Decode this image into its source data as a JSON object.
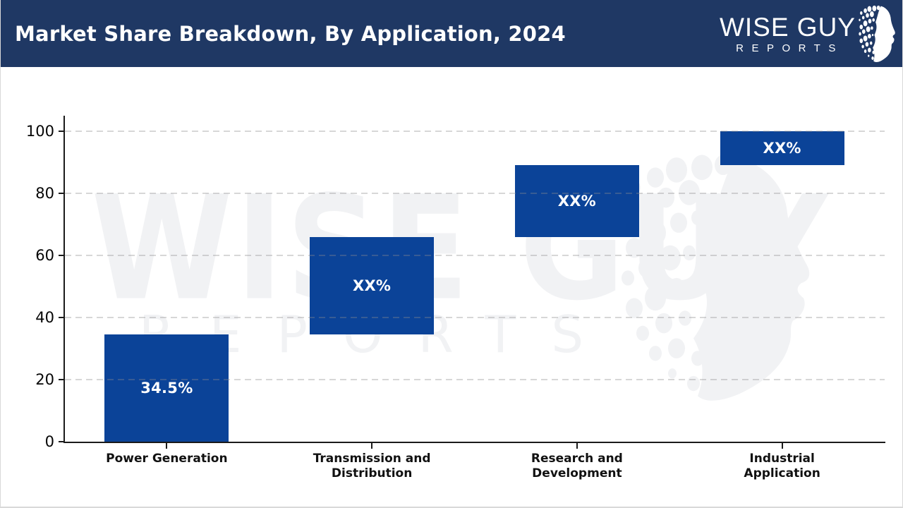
{
  "header": {
    "title": "Market Share Breakdown, By Application, 2024",
    "logo": {
      "line1": "WISE GUY",
      "line2": "REPORTS"
    }
  },
  "watermark": {
    "line1": "WISE GUY",
    "line2": "REPORTS"
  },
  "colors": {
    "header_bg": "#1f3864",
    "bar": "#0b4398",
    "axis": "#1a1a1a",
    "gridline_base": "#d9d9d9",
    "watermark": "#f1f2f4",
    "bar_label": "#ffffff",
    "page_bg": "#ffffff"
  },
  "chart_data": {
    "type": "bar",
    "subtype": "waterfall-stacked-percentage",
    "title": "Market Share Breakdown, By Application, 2024",
    "categories": [
      "Power Generation",
      "Transmission and Distribution",
      "Research and Development",
      "Industrial Application"
    ],
    "category_lines": [
      [
        "Power Generation"
      ],
      [
        "Transmission and",
        "Distribution"
      ],
      [
        "Research and",
        "Development"
      ],
      [
        "Industrial",
        "Application"
      ]
    ],
    "segments": [
      {
        "category": "Power Generation",
        "from": 0,
        "to": 34.5,
        "label": "34.5%"
      },
      {
        "category": "Transmission and Distribution",
        "from": 34.5,
        "to": 66,
        "label": "XX%"
      },
      {
        "category": "Research and Development",
        "from": 66,
        "to": 89,
        "label": "XX%"
      },
      {
        "category": "Industrial Application",
        "from": 89,
        "to": 100,
        "label": "XX%"
      }
    ],
    "ylim": [
      0,
      100
    ],
    "yticks": [
      0,
      20,
      40,
      60,
      80,
      100
    ],
    "xlabel": "",
    "ylabel": "",
    "grid": "horizontal-dashed",
    "legend": "none"
  }
}
